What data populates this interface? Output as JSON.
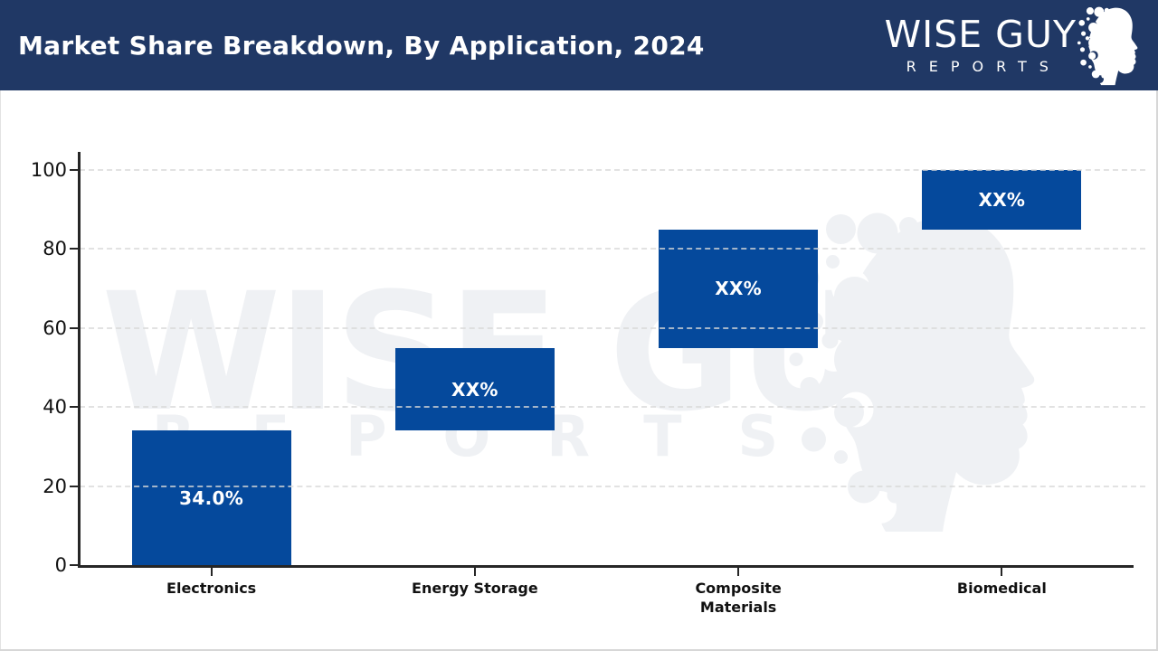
{
  "header": {
    "title": "Market Share Breakdown, By Application, 2024",
    "logo": {
      "line1": "WISE GUY",
      "line2": "REPORTS"
    }
  },
  "watermark": {
    "line1": "WISE GUY",
    "line2": "REPORTS"
  },
  "chart_data": {
    "type": "bar",
    "subtype": "waterfall",
    "title": "Market Share Breakdown, By Application, 2024",
    "categories": [
      "Electronics",
      "Energy Storage",
      "Composite Materials",
      "Biomedical"
    ],
    "segments": [
      {
        "start": 0,
        "end": 34
      },
      {
        "start": 34,
        "end": 55
      },
      {
        "start": 55,
        "end": 85
      },
      {
        "start": 85,
        "end": 100
      }
    ],
    "bar_labels": [
      "34.0%",
      "XX%",
      "XX%",
      "XX%"
    ],
    "ylim": [
      0,
      100
    ],
    "yticks": [
      0,
      20,
      40,
      60,
      80,
      100
    ],
    "xlabel": "",
    "ylabel": "",
    "grid": "horizontal-dashed",
    "legend": "none"
  },
  "colors": {
    "header_bg": "#203865",
    "bar": "#05499c",
    "axis": "#262626",
    "gridline": "#d9d9d9",
    "watermark": "#eff1f4",
    "text": "#111111",
    "title_text": "#ffffff"
  }
}
